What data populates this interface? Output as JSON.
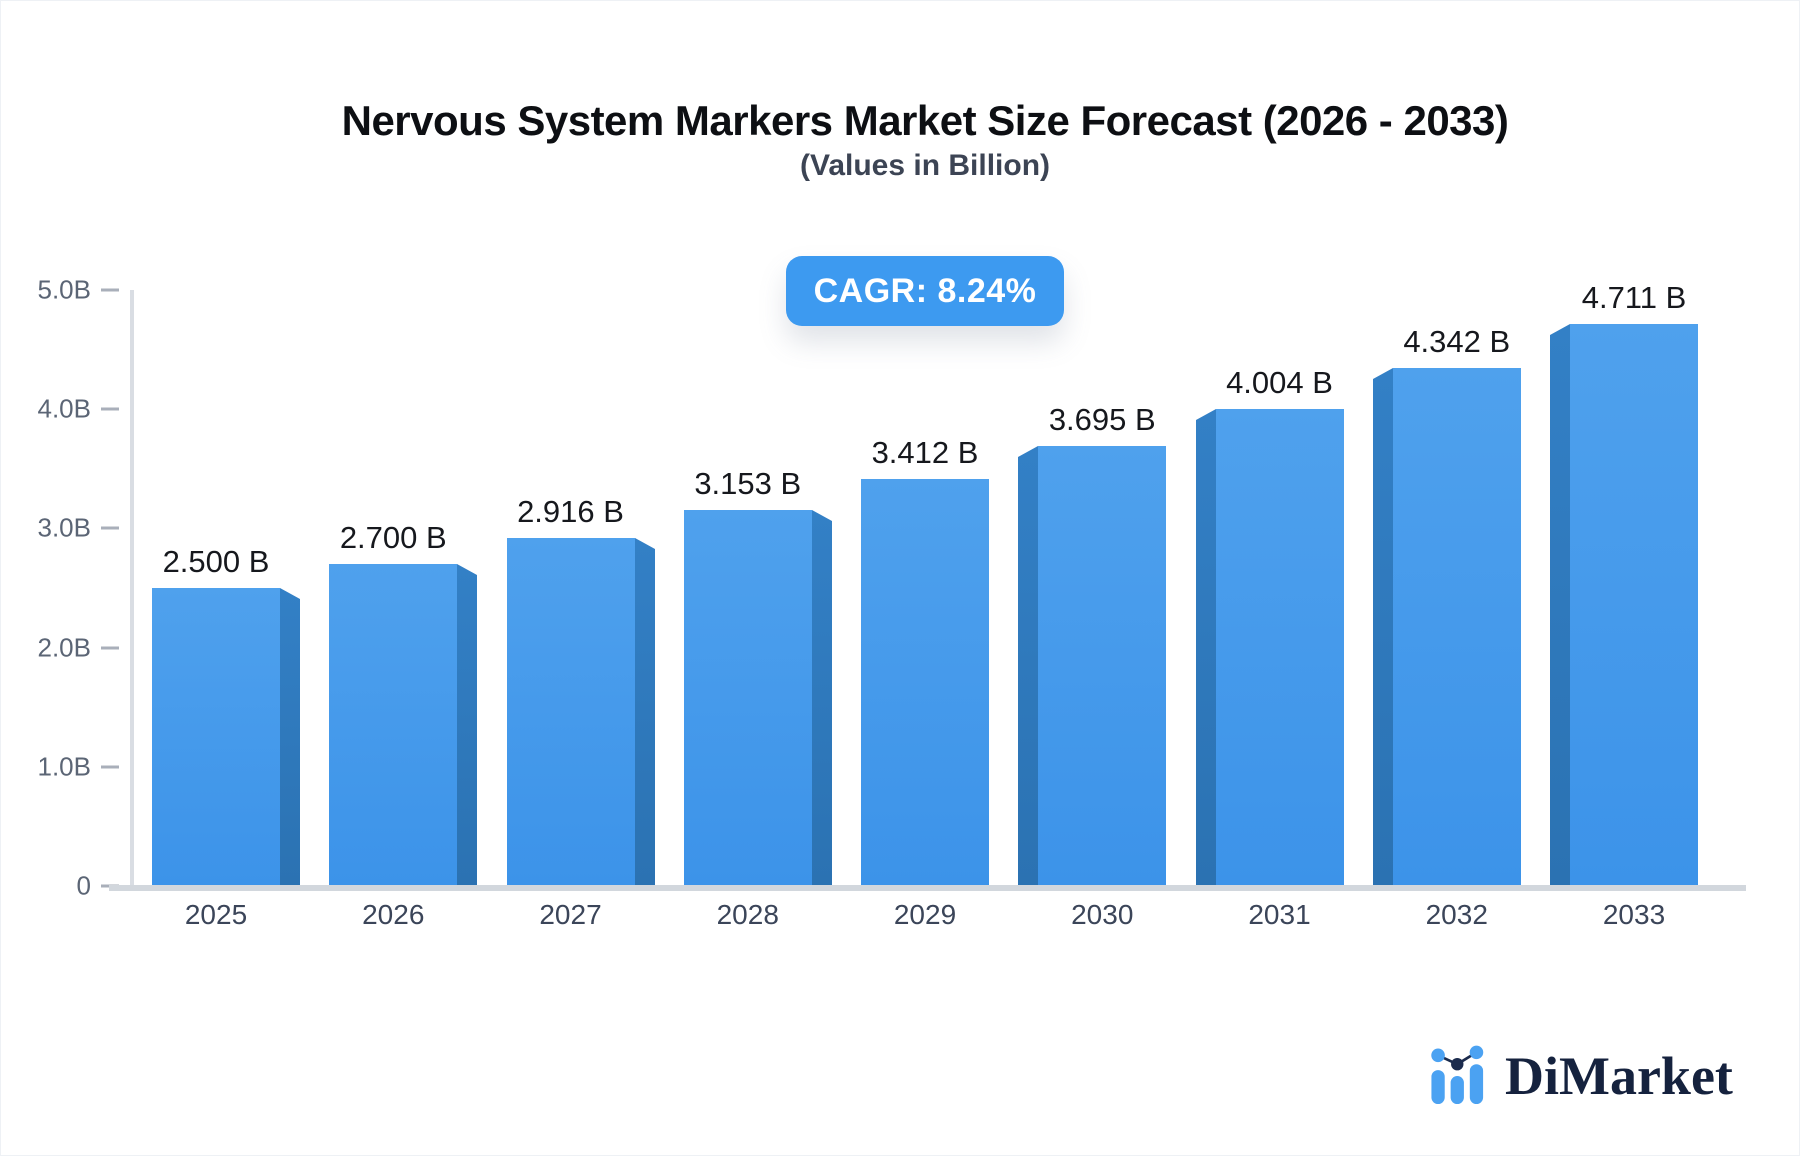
{
  "header": {
    "title": "Nervous System Markers Market Size Forecast (2026 - 2033)",
    "subtitle": "(Values in Billion)"
  },
  "badge": {
    "label": "CAGR: 8.24%",
    "color": "#3d9af0"
  },
  "chart_data": {
    "type": "bar",
    "title": "Nervous System Markers Market Size Forecast (2026 - 2033)",
    "subtitle": "(Values in Billion)",
    "categories": [
      "2025",
      "2026",
      "2027",
      "2028",
      "2029",
      "2030",
      "2031",
      "2032",
      "2033"
    ],
    "values": [
      2.5,
      2.7,
      2.916,
      3.153,
      3.412,
      3.695,
      4.004,
      4.342,
      4.711
    ],
    "value_labels": [
      "2.500 B",
      "2.700 B",
      "2.916 B",
      "3.153 B",
      "3.412 B",
      "3.695 B",
      "4.004 B",
      "4.342 B",
      "4.711 B"
    ],
    "xlabel": "",
    "ylabel": "",
    "ylim": [
      0,
      5.0
    ],
    "y_tick_values": [
      5.0,
      4.0,
      3.0,
      2.0,
      1.0,
      0
    ],
    "y_tick_labels": [
      "5.0B",
      "4.0B",
      "3.0B",
      "2.0B",
      "1.0B",
      "0"
    ],
    "grid": false,
    "legend": "none",
    "annotation": "CAGR: 8.24%",
    "bar_color_top": "#4fa1ed",
    "bar_color_bottom": "#3c93e9",
    "bar_side_color": "#2f7abf"
  },
  "logo": {
    "text": "DiMarket",
    "icon": "mini-bar-chart-icon",
    "text_color": "#15223e",
    "icon_blue": "#4ba2f2",
    "icon_navy": "#1b2b4d"
  }
}
